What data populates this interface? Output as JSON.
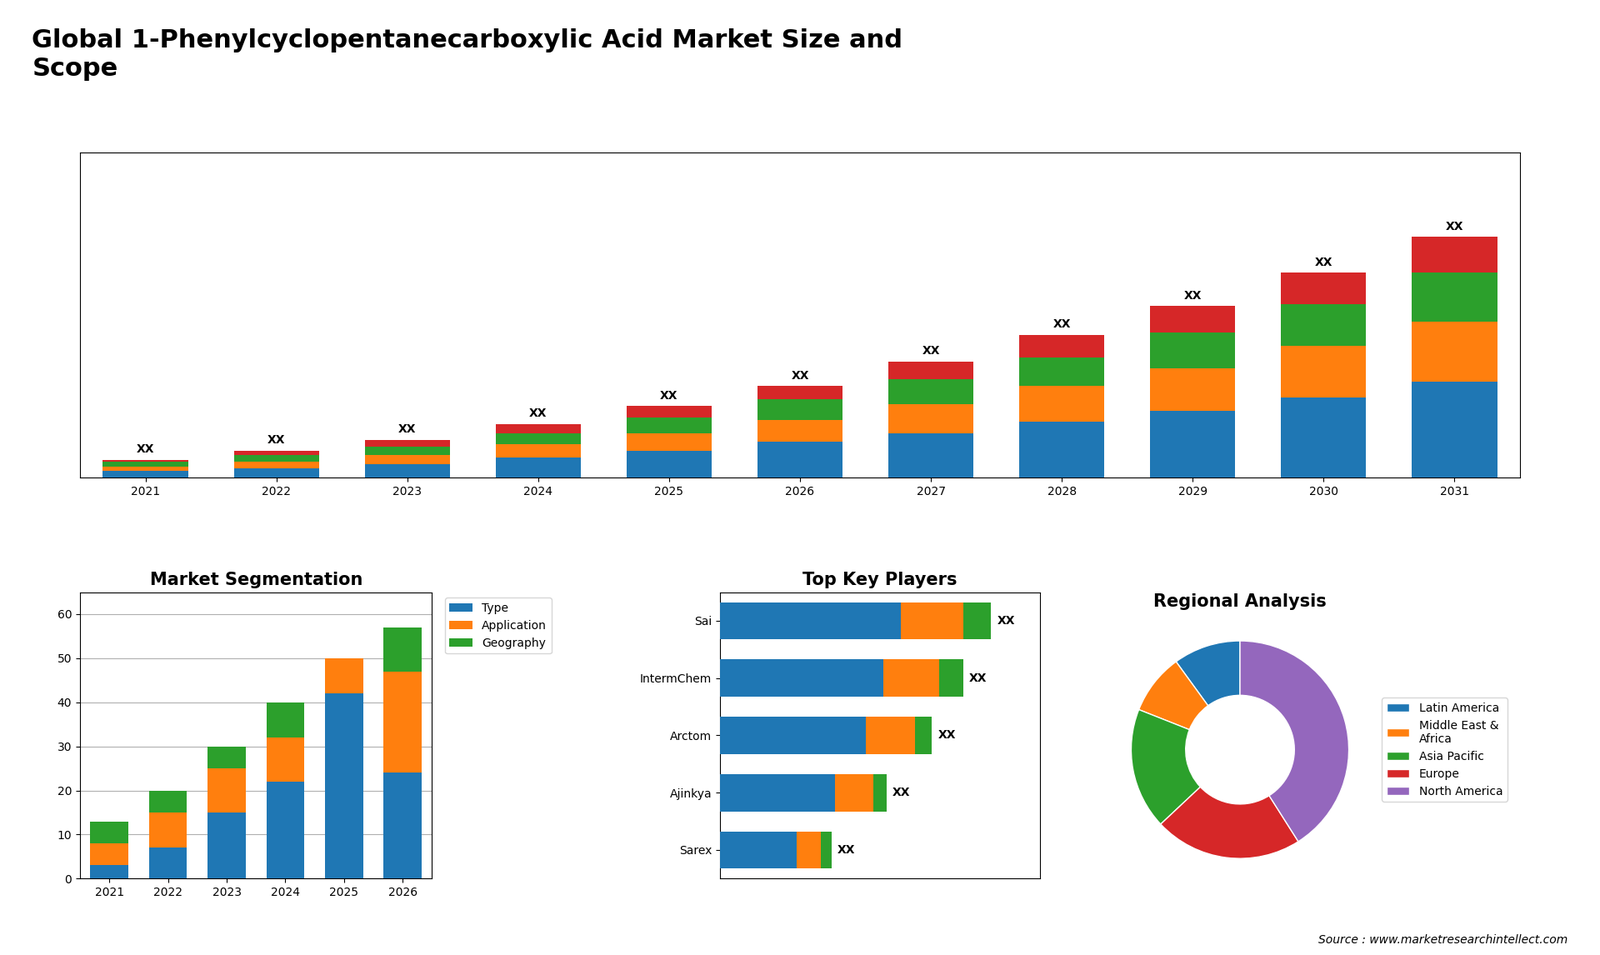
{
  "title": "Global 1-Phenylcyclopentanecarboxylic Acid Market Size and\nScope",
  "annotations": [
    "Source : www.marketresearchintellect.com"
  ],
  "chart_data": [
    {
      "type": "bar",
      "stacked": true,
      "categories": [
        "2021",
        "2022",
        "2023",
        "2024",
        "2025",
        "2026",
        "2027",
        "2028",
        "2029",
        "2030",
        "2031"
      ],
      "series": [
        {
          "values": [
            3,
            4,
            6,
            9,
            12,
            16,
            20,
            25,
            30,
            36,
            43
          ]
        },
        {
          "values": [
            2,
            3,
            4,
            6,
            8,
            10,
            13,
            16,
            19,
            23,
            27
          ]
        },
        {
          "values": [
            2,
            3,
            4,
            5,
            7,
            9,
            11,
            13,
            16,
            19,
            22
          ]
        },
        {
          "values": [
            1,
            2,
            3,
            4,
            5,
            6,
            8,
            10,
            12,
            14,
            16
          ]
        }
      ],
      "value_labels": [
        "XX",
        "XX",
        "XX",
        "XX",
        "XX",
        "XX",
        "XX",
        "XX",
        "XX",
        "XX",
        "XX"
      ],
      "ylim": [
        0,
        145.8
      ],
      "yticks": [],
      "tick_labels": "x"
    },
    {
      "type": "bar",
      "stacked": true,
      "title": "Market Segmentation",
      "categories": [
        "2021",
        "2022",
        "2023",
        "2024",
        "2025",
        "2026"
      ],
      "series": [
        {
          "name": "Type",
          "values": [
            3,
            7,
            15,
            22,
            42,
            24
          ]
        },
        {
          "name": "Application",
          "values": [
            5,
            8,
            10,
            10,
            8,
            23
          ]
        },
        {
          "name": "Geography",
          "values": [
            5,
            5,
            5,
            8,
            0,
            10
          ]
        }
      ],
      "ylim": [
        0,
        65
      ],
      "yticks": [
        0,
        10,
        20,
        30,
        40,
        50,
        60
      ],
      "grid": true,
      "legend": "upper left"
    },
    {
      "type": "bar",
      "orientation": "horizontal",
      "stacked": true,
      "title": "Top Key Players",
      "categories": [
        "Sai",
        "IntermChem",
        "Arctom",
        "Ajinkya",
        "Sarex"
      ],
      "series": [
        {
          "values": [
            52,
            47,
            42,
            33,
            22
          ]
        },
        {
          "values": [
            18,
            16,
            14,
            11,
            7
          ]
        },
        {
          "values": [
            8,
            7,
            5,
            4,
            3
          ]
        }
      ],
      "value_labels": [
        "XX",
        "XX",
        "XX",
        "XX",
        "XX"
      ],
      "xlim": [
        0,
        92.04
      ],
      "xticks": [],
      "tick_labels": "y"
    },
    {
      "type": "donut",
      "title": "Regional Analysis",
      "categories": [
        "Latin America",
        "Middle East &\nAfrica",
        "Asia Pacific",
        "Europe",
        "North America"
      ],
      "values": [
        10,
        9,
        18,
        22,
        41
      ],
      "legend": "center left"
    }
  ]
}
